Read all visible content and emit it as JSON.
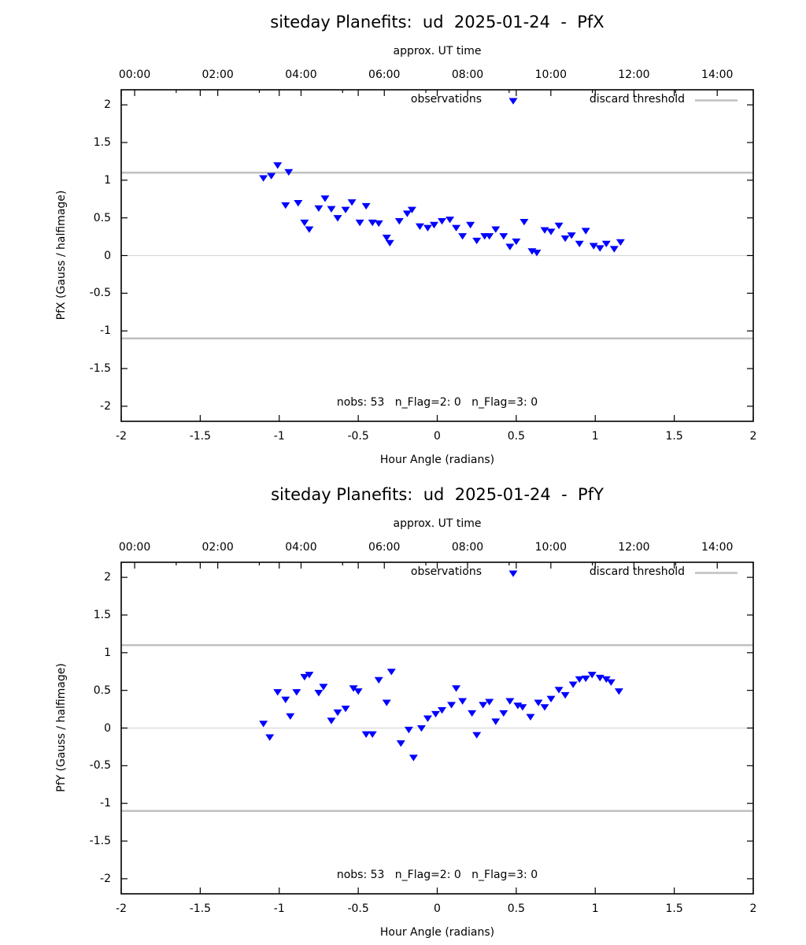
{
  "figure": {
    "background": "#ffffff",
    "marker_color": "#0000ff",
    "threshold_color": "#c0c0c0",
    "zero_line_color": "#d8d8d8",
    "border_color": "#000000"
  },
  "chart_data": [
    {
      "type": "scatter",
      "title": "siteday Planefits:  ud  2025-01-24  -  PfX",
      "xlabel": "Hour Angle (radians)",
      "ylabel": "PfX (Gauss / halfimage)",
      "x2label": "approx. UT time",
      "xlim": [
        -2,
        2
      ],
      "ylim": [
        -2.2,
        2.2
      ],
      "xtick_values": [
        -2,
        -1.5,
        -1,
        -0.5,
        0,
        0.5,
        1,
        1.5,
        2
      ],
      "xtick_labels": [
        "-2",
        "-1.5",
        "-1",
        "-0.5",
        "0",
        "0.5",
        "1",
        "1.5",
        "2"
      ],
      "ytick_values": [
        -2,
        -1.5,
        -1,
        -0.5,
        0,
        0.5,
        1,
        1.5,
        2
      ],
      "ytick_labels": [
        "-2",
        "-1.5",
        "-1",
        "-0.5",
        "0",
        "0.5",
        "1",
        "1.5",
        "2"
      ],
      "x2tick_values": [
        -1.915,
        -1.389,
        -0.862,
        -0.335,
        0.192,
        0.719,
        1.245,
        1.772
      ],
      "x2tick_labels": [
        "00:00",
        "02:00",
        "04:00",
        "06:00",
        "08:00",
        "10:00",
        "12:00",
        "14:00"
      ],
      "x2minor_values": [
        -1.652,
        -1.126,
        -0.599,
        -0.072,
        0.455,
        0.982,
        1.509
      ],
      "legend": [
        {
          "label": "observations",
          "marker": "triangle-down",
          "color": "#0000ff"
        },
        {
          "label": "discard threshold",
          "marker": "line",
          "color": "#c0c0c0"
        }
      ],
      "threshold_lines": [
        1.1,
        -1.1
      ],
      "zero_line": 0,
      "annotation": "nobs: 53   n_Flag=2: 0   n_Flag=3: 0",
      "grid": false,
      "series": [
        {
          "name": "observations",
          "marker": "triangle-down",
          "color": "#0000ff",
          "points": [
            [
              -1.1,
              1.03
            ],
            [
              -1.05,
              1.06
            ],
            [
              -1.01,
              1.2
            ],
            [
              -0.96,
              0.67
            ],
            [
              -0.94,
              1.11
            ],
            [
              -0.88,
              0.7
            ],
            [
              -0.84,
              0.44
            ],
            [
              -0.81,
              0.35
            ],
            [
              -0.75,
              0.63
            ],
            [
              -0.71,
              0.76
            ],
            [
              -0.67,
              0.62
            ],
            [
              -0.63,
              0.5
            ],
            [
              -0.58,
              0.61
            ],
            [
              -0.54,
              0.71
            ],
            [
              -0.49,
              0.44
            ],
            [
              -0.45,
              0.66
            ],
            [
              -0.41,
              0.44
            ],
            [
              -0.37,
              0.43
            ],
            [
              -0.32,
              0.24
            ],
            [
              -0.3,
              0.17
            ],
            [
              -0.24,
              0.46
            ],
            [
              -0.19,
              0.56
            ],
            [
              -0.16,
              0.61
            ],
            [
              -0.11,
              0.39
            ],
            [
              -0.06,
              0.37
            ],
            [
              -0.02,
              0.41
            ],
            [
              0.03,
              0.46
            ],
            [
              0.08,
              0.48
            ],
            [
              0.12,
              0.37
            ],
            [
              0.16,
              0.26
            ],
            [
              0.21,
              0.41
            ],
            [
              0.25,
              0.2
            ],
            [
              0.3,
              0.26
            ],
            [
              0.33,
              0.26
            ],
            [
              0.37,
              0.35
            ],
            [
              0.42,
              0.26
            ],
            [
              0.46,
              0.12
            ],
            [
              0.5,
              0.19
            ],
            [
              0.55,
              0.45
            ],
            [
              0.6,
              0.06
            ],
            [
              0.63,
              0.04
            ],
            [
              0.68,
              0.34
            ],
            [
              0.72,
              0.32
            ],
            [
              0.77,
              0.4
            ],
            [
              0.81,
              0.23
            ],
            [
              0.85,
              0.27
            ],
            [
              0.9,
              0.16
            ],
            [
              0.94,
              0.33
            ],
            [
              0.99,
              0.13
            ],
            [
              1.03,
              0.1
            ],
            [
              1.07,
              0.16
            ],
            [
              1.12,
              0.09
            ],
            [
              1.16,
              0.18
            ]
          ]
        }
      ]
    },
    {
      "type": "scatter",
      "title": "siteday Planefits:  ud  2025-01-24  -  PfY",
      "xlabel": "Hour Angle (radians)",
      "ylabel": "PfY (Gauss / halfimage)",
      "x2label": "approx. UT time",
      "xlim": [
        -2,
        2
      ],
      "ylim": [
        -2.2,
        2.2
      ],
      "xtick_values": [
        -2,
        -1.5,
        -1,
        -0.5,
        0,
        0.5,
        1,
        1.5,
        2
      ],
      "xtick_labels": [
        "-2",
        "-1.5",
        "-1",
        "-0.5",
        "0",
        "0.5",
        "1",
        "1.5",
        "2"
      ],
      "ytick_values": [
        -2,
        -1.5,
        -1,
        -0.5,
        0,
        0.5,
        1,
        1.5,
        2
      ],
      "ytick_labels": [
        "-2",
        "-1.5",
        "-1",
        "-0.5",
        "0",
        "0.5",
        "1",
        "1.5",
        "2"
      ],
      "x2tick_values": [
        -1.915,
        -1.389,
        -0.862,
        -0.335,
        0.192,
        0.719,
        1.245,
        1.772
      ],
      "x2tick_labels": [
        "00:00",
        "02:00",
        "04:00",
        "06:00",
        "08:00",
        "10:00",
        "12:00",
        "14:00"
      ],
      "x2minor_values": [
        -1.652,
        -1.126,
        -0.599,
        -0.072,
        0.455,
        0.982,
        1.509
      ],
      "legend": [
        {
          "label": "observations",
          "marker": "triangle-down",
          "color": "#0000ff"
        },
        {
          "label": "discard threshold",
          "marker": "line",
          "color": "#c0c0c0"
        }
      ],
      "threshold_lines": [
        1.1,
        -1.1
      ],
      "zero_line": 0,
      "annotation": "nobs: 53   n_Flag=2: 0   n_Flag=3: 0",
      "grid": false,
      "series": [
        {
          "name": "observations",
          "marker": "triangle-down",
          "color": "#0000ff",
          "points": [
            [
              -1.1,
              0.06
            ],
            [
              -1.06,
              -0.12
            ],
            [
              -1.01,
              0.48
            ],
            [
              -0.96,
              0.38
            ],
            [
              -0.93,
              0.16
            ],
            [
              -0.89,
              0.48
            ],
            [
              -0.84,
              0.68
            ],
            [
              -0.81,
              0.71
            ],
            [
              -0.75,
              0.47
            ],
            [
              -0.72,
              0.55
            ],
            [
              -0.67,
              0.1
            ],
            [
              -0.63,
              0.21
            ],
            [
              -0.58,
              0.26
            ],
            [
              -0.53,
              0.53
            ],
            [
              -0.5,
              0.49
            ],
            [
              -0.45,
              -0.08
            ],
            [
              -0.41,
              -0.08
            ],
            [
              -0.37,
              0.64
            ],
            [
              -0.32,
              0.34
            ],
            [
              -0.29,
              0.75
            ],
            [
              -0.23,
              -0.2
            ],
            [
              -0.18,
              -0.02
            ],
            [
              -0.15,
              -0.39
            ],
            [
              -0.1,
              0.0
            ],
            [
              -0.06,
              0.13
            ],
            [
              -0.01,
              0.19
            ],
            [
              0.03,
              0.24
            ],
            [
              0.09,
              0.31
            ],
            [
              0.12,
              0.53
            ],
            [
              0.16,
              0.36
            ],
            [
              0.22,
              0.2
            ],
            [
              0.25,
              -0.09
            ],
            [
              0.29,
              0.31
            ],
            [
              0.33,
              0.35
            ],
            [
              0.37,
              0.09
            ],
            [
              0.42,
              0.2
            ],
            [
              0.46,
              0.36
            ],
            [
              0.51,
              0.3
            ],
            [
              0.54,
              0.28
            ],
            [
              0.59,
              0.15
            ],
            [
              0.64,
              0.34
            ],
            [
              0.68,
              0.28
            ],
            [
              0.72,
              0.39
            ],
            [
              0.77,
              0.51
            ],
            [
              0.81,
              0.44
            ],
            [
              0.86,
              0.58
            ],
            [
              0.9,
              0.65
            ],
            [
              0.94,
              0.66
            ],
            [
              0.98,
              0.71
            ],
            [
              1.03,
              0.67
            ],
            [
              1.07,
              0.65
            ],
            [
              1.1,
              0.61
            ],
            [
              1.15,
              0.49
            ]
          ]
        }
      ]
    }
  ]
}
